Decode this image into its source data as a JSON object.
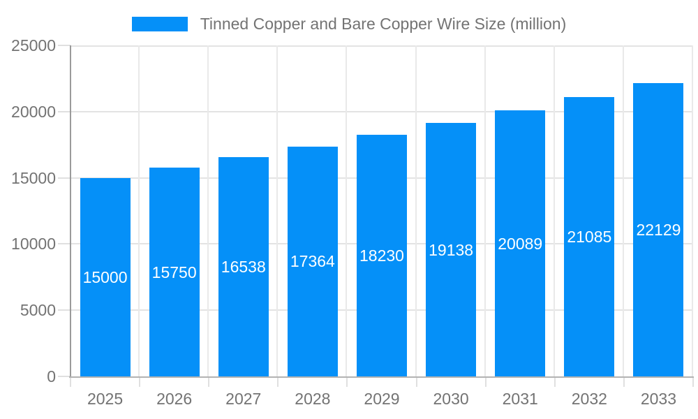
{
  "legend": {
    "label": "Tinned Copper and Bare Copper Wire Size (million)"
  },
  "colors": {
    "bar": "#0590f8",
    "bar_label": "#ffffff",
    "axis_y": "#9a9a9a",
    "axis_x": "#b3b3b3",
    "gridline_horizontal": "#e3e3e3",
    "gridline_vertical": "#e9e9e9",
    "tick": "#e0e0e0",
    "text": "#737373",
    "background": "#ffffff"
  },
  "chart_data": {
    "type": "bar",
    "title": "Tinned Copper and Bare Copper Wire Size (million)",
    "categories": [
      "2025",
      "2026",
      "2027",
      "2028",
      "2029",
      "2030",
      "2031",
      "2032",
      "2033"
    ],
    "values": [
      15000,
      15750,
      16538,
      17364,
      18230,
      19138,
      20089,
      21085,
      22129
    ],
    "xlabel": "",
    "ylabel": "",
    "ylim": [
      0,
      25000
    ],
    "yticks": [
      0,
      5000,
      10000,
      15000,
      20000,
      25000
    ],
    "grid": true,
    "legend_position": "top-center",
    "value_labels": "inside-bars-centered"
  }
}
